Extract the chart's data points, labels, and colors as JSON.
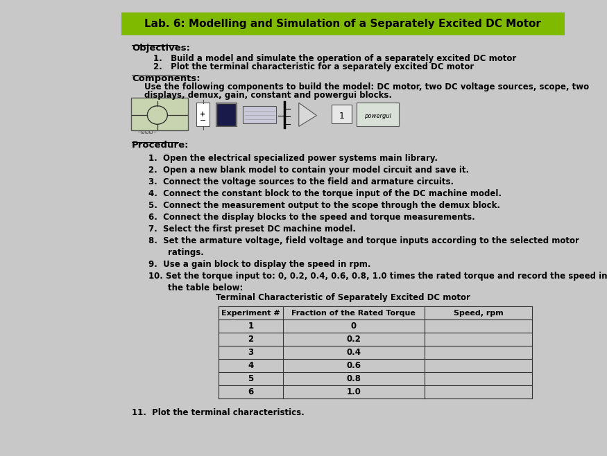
{
  "title": "Lab. 6: Modelling and Simulation of a Separately Excited DC Motor",
  "title_bg": "#7FBA00",
  "background_color": "#C8C8C8",
  "content_bg": "#E8E8E0",
  "objectives_header": "Objectives:",
  "objectives": [
    "Build a model and simulate the operation of a separately excited DC motor",
    "Plot the terminal characteristic for a separately excited DC motor"
  ],
  "components_header": "Components:",
  "components_text_1": "Use the following components to build the model: DC motor, two DC voltage sources, scope, two",
  "components_text_2": "displays, demux, gain, constant and powergui blocks.",
  "procedure_header": "Procedure:",
  "procedure_steps": [
    "Open the electrical specialized power systems main library.",
    "Open a new blank model to contain your model circuit and save it.",
    "Connect the voltage sources to the field and armature circuits.",
    "Connect the constant block to the torque input of the DC machine model.",
    "Connect the measurement output to the scope through the demux block.",
    "Connect the display blocks to the speed and torque measurements.",
    "Select the first preset DC machine model.",
    "Set the armature voltage, field voltage and torque inputs according to the selected motor",
    "Use a gain block to display the speed in rpm.",
    "Set the torque input to: 0, 0.2, 0.4, 0.6, 0.8, 1.0 times the rated torque and record the speed in"
  ],
  "step8_cont": "ratings.",
  "step10_cont": "the table below:",
  "table_title": "Terminal Characteristic of Separately Excited DC motor",
  "table_headers": [
    "Experiment #",
    "Fraction of the Rated Torque",
    "Speed, rpm"
  ],
  "table_rows": [
    [
      "1",
      "0",
      ""
    ],
    [
      "2",
      "0.2",
      ""
    ],
    [
      "3",
      "0.4",
      ""
    ],
    [
      "4",
      "0.6",
      ""
    ],
    [
      "5",
      "0.8",
      ""
    ],
    [
      "6",
      "1.0",
      ""
    ]
  ],
  "step11": "11.  Plot the terminal characteristics.",
  "font_color": "#000000",
  "text_fontsize": 8.5,
  "header_fontsize": 9.5
}
